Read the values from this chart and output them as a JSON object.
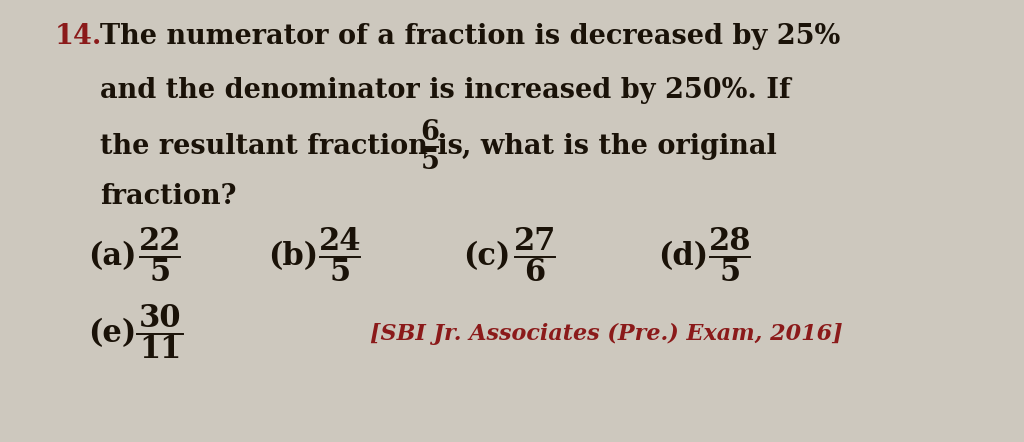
{
  "background_color": "#cdc8be",
  "text_color": "#1a1208",
  "num_color": "#8b1a1a",
  "question_number": "14.",
  "line1": "The numerator of a fraction is decreased by 25%",
  "line2": "and the denominator is increased by 250%. If",
  "line3_pre": "the resultant fraction is",
  "frac1_num": "6",
  "frac1_den": "5",
  "line3_post": ", what is the original",
  "line4": "fraction?",
  "options": [
    {
      "label": "(a)",
      "num": "22",
      "den": "5"
    },
    {
      "label": "(b)",
      "num": "24",
      "den": "5"
    },
    {
      "label": "(c)",
      "num": "27",
      "den": "6"
    },
    {
      "label": "(d)",
      "num": "28",
      "den": "5"
    }
  ],
  "opt_e_label": "(e)",
  "opt_e_num": "30",
  "opt_e_den": "11",
  "source": "[SBI Jr. Associates (Pre.) Exam, 2016]",
  "fs_body": 19.5,
  "fs_opts": 22,
  "fs_num": "14.",
  "fs_source": 16
}
